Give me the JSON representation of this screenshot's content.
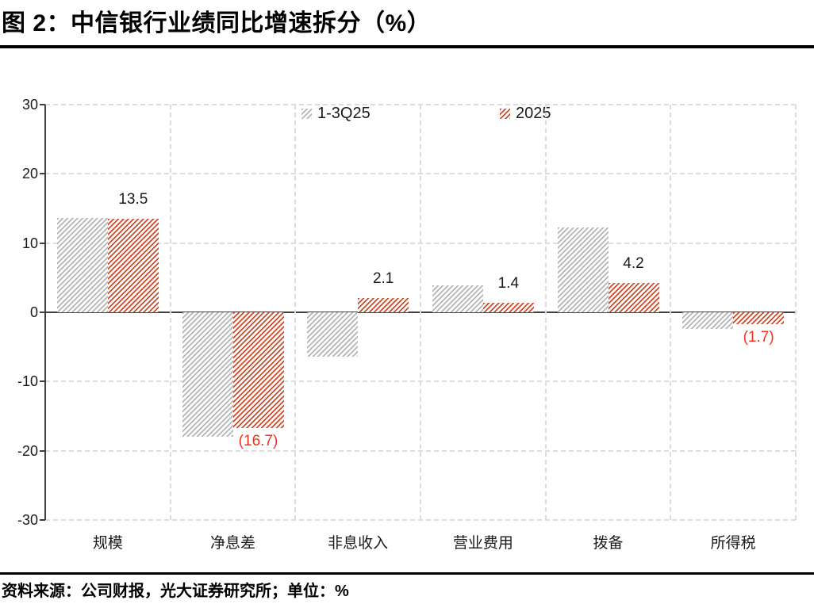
{
  "page": {
    "title": "图 2：中信银行业绩同比增速拆分（%）",
    "source_note": "资料来源：公司财报，光大证券研究所；单位：%"
  },
  "chart_data": {
    "type": "bar",
    "title": "图 2：中信银行业绩同比增速拆分（%）",
    "unit": "%",
    "categories": [
      "规模",
      "净息差",
      "非息收入",
      "营业费用",
      "拨备",
      "所得税"
    ],
    "series": [
      {
        "name": "1-3Q25",
        "color": "#b4b4b4",
        "pattern": "diagonal-hatch",
        "values": [
          13.6,
          -18.0,
          -6.4,
          3.9,
          12.3,
          -2.4
        ]
      },
      {
        "name": "2025",
        "color": "#cf4a2a",
        "pattern": "diagonal-hatch",
        "values": [
          13.5,
          -16.7,
          2.1,
          1.4,
          4.2,
          -1.7
        ],
        "data_labels": [
          "13.5",
          "(16.7)",
          "2.1",
          "1.4",
          "4.2",
          "(1.7)"
        ]
      }
    ],
    "ylim": [
      -30,
      30
    ],
    "yticks": [
      30,
      20,
      10,
      0,
      -10,
      -20,
      -30
    ],
    "positive_label_color": "#1a1a1a",
    "negative_label_color": "#f5301d",
    "grid": "dashed horizontal gridlines and dashed vertical category separators",
    "legend_position": "top-inside"
  }
}
